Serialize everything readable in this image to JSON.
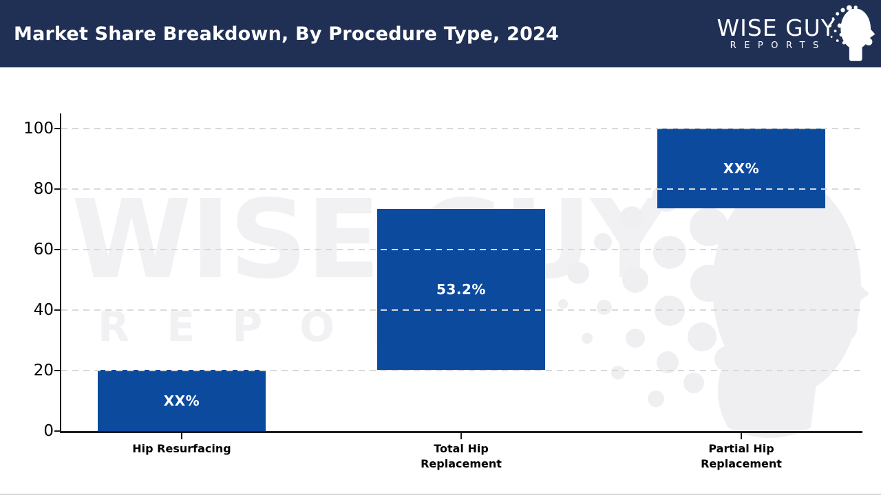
{
  "header": {
    "title": "Market Share Breakdown, By Procedure Type, 2024",
    "brand": {
      "name": "WISE GUY",
      "subtitle": "REPORTS"
    }
  },
  "watermark": {
    "line1": "WISE GUY",
    "line2": "REPORTS"
  },
  "colors": {
    "header_bg": "#203055",
    "bar": "#0c4a9e",
    "grid": "#d9d9d9",
    "axis": "#1b1b1b",
    "bar_label": "#ffffff",
    "watermark": "#f1f1f4"
  },
  "chart_data": {
    "type": "bar",
    "subtype": "floating-segment-bars",
    "title": "Market Share Breakdown, By Procedure Type, 2024",
    "categories": [
      "Hip Resurfacing",
      "Total Hip\nReplacement",
      "Partial Hip\nReplacement"
    ],
    "bars": [
      {
        "category": "Hip Resurfacing",
        "start": 0,
        "end": 20.2,
        "label": "XX%"
      },
      {
        "category": "Total Hip\nReplacement",
        "start": 20.3,
        "end": 73.5,
        "label": "53.2%"
      },
      {
        "category": "Partial Hip\nReplacement",
        "start": 73.6,
        "end": 100,
        "label": "XX%"
      }
    ],
    "ylim": [
      0,
      100
    ],
    "yticks": [
      0,
      20,
      40,
      60,
      80,
      100
    ],
    "xlabel": "",
    "ylabel": "",
    "grid": "horizontal-dashed",
    "legend": "none",
    "bar_color": "#0c4a9e"
  }
}
